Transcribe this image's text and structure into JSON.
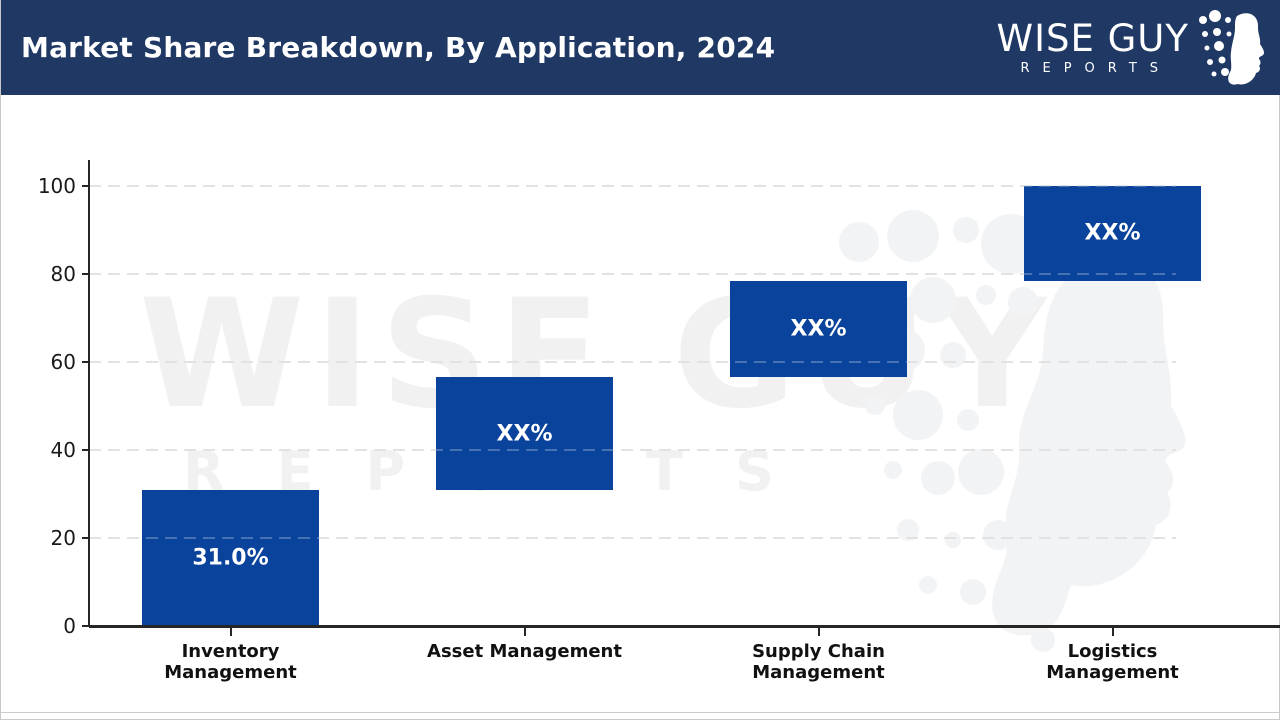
{
  "page": {
    "background": "#ffffff",
    "border_color": "#c9c9c9"
  },
  "header": {
    "background": "#1F3864",
    "title": "Market Share Breakdown, By Application, 2024",
    "logo": {
      "brand_line1": "WISE GUY",
      "brand_line2": "REPORTS"
    }
  },
  "watermark": {
    "line1": "WISE GUY",
    "line2": "REPORTS"
  },
  "chart_data": {
    "type": "bar",
    "subtype": "waterfall",
    "title": "Market Share Breakdown, By Application, 2024",
    "xlabel": "",
    "ylabel": "",
    "ylim": [
      0,
      100
    ],
    "yticks": [
      0,
      20,
      40,
      60,
      80,
      100
    ],
    "grid": "horizontal-dashed",
    "legend": "none",
    "bar_color": "#0A439B",
    "bar_label_color": "#ffffff",
    "axis_color": "#262626",
    "categories": [
      "Inventory Management",
      "Asset Management",
      "Supply Chain Management",
      "Logistics Management"
    ],
    "category_lines": [
      [
        "Inventory",
        "Management"
      ],
      [
        "Asset Management"
      ],
      [
        "Supply Chain",
        "Management"
      ],
      [
        "Logistics",
        "Management"
      ]
    ],
    "segments": [
      {
        "category": "Inventory Management",
        "start": 0,
        "end": 31,
        "label": "31.0%"
      },
      {
        "category": "Asset Management",
        "start": 31,
        "end": 56.5,
        "label": "XX%"
      },
      {
        "category": "Supply Chain Management",
        "start": 56.5,
        "end": 78.5,
        "label": "XX%"
      },
      {
        "category": "Logistics Management",
        "start": 78.5,
        "end": 100,
        "label": "XX%"
      }
    ]
  }
}
